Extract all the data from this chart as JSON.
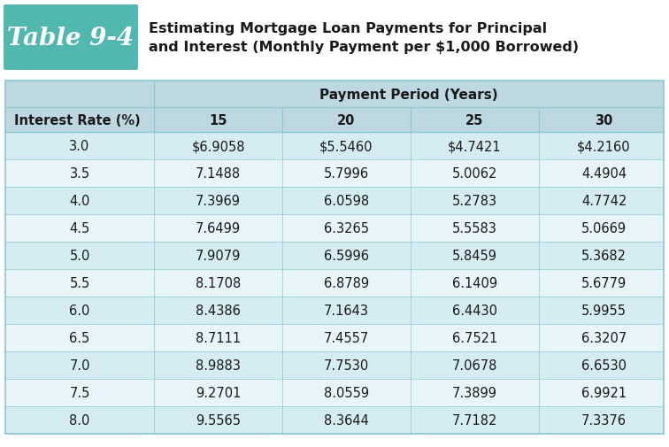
{
  "title_box_text": "Table 9-4",
  "title_main": "Estimating Mortgage Loan Payments for Principal\nand Interest (Monthly Payment per $1,000 Borrowed)",
  "col_header_group": "Payment Period (Years)",
  "col_header_row1": [
    "Interest Rate (%)",
    "15",
    "20",
    "25",
    "30"
  ],
  "interest_rates": [
    "3.0",
    "3.5",
    "4.0",
    "4.5",
    "5.0",
    "5.5",
    "6.0",
    "6.5",
    "7.0",
    "7.5",
    "8.0"
  ],
  "data": [
    [
      "$6.9058",
      "$5.5460",
      "$4.7421",
      "$4.2160"
    ],
    [
      "7.1488",
      "5.7996",
      "5.0062",
      "4.4904"
    ],
    [
      "7.3969",
      "6.0598",
      "5.2783",
      "4.7742"
    ],
    [
      "7.6499",
      "6.3265",
      "5.5583",
      "5.0669"
    ],
    [
      "7.9079",
      "6.5996",
      "5.8459",
      "5.3682"
    ],
    [
      "8.1708",
      "6.8789",
      "6.1409",
      "5.6779"
    ],
    [
      "8.4386",
      "7.1643",
      "6.4430",
      "5.9955"
    ],
    [
      "8.7111",
      "7.4557",
      "6.7521",
      "6.3207"
    ],
    [
      "8.9883",
      "7.7530",
      "7.0678",
      "6.6530"
    ],
    [
      "9.2701",
      "8.0559",
      "7.3899",
      "6.9921"
    ],
    [
      "9.5565",
      "8.3644",
      "7.7182",
      "7.3376"
    ]
  ],
  "teal_box_bg": "#50B8AE",
  "light_blue_row": "#D5ECF2",
  "white_row": "#E8F5F8",
  "border_color": "#88C8D2",
  "text_color_dark": "#1a1a1a",
  "col_header_bg": "#BDD8E0",
  "fig_bg": "#ffffff"
}
